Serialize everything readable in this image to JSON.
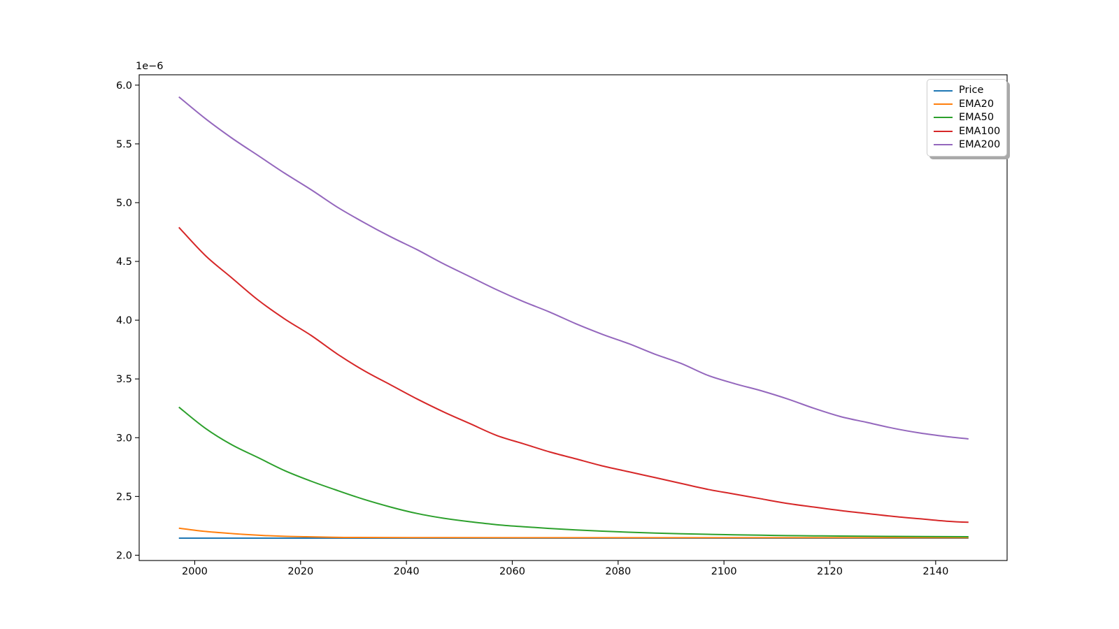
{
  "figure": {
    "background": "#ffffff",
    "offset_text": "1e−6"
  },
  "chart_data": {
    "type": "line",
    "title": "",
    "xlabel": "",
    "ylabel": "",
    "y_offset_label": "1e−6",
    "y_unit_multiplier": 1e-06,
    "xlim": [
      1989.5,
      2153.5
    ],
    "ylim": [
      1.955,
      6.088
    ],
    "grid": false,
    "x_ticks": {
      "values": [
        2000,
        2020,
        2040,
        2060,
        2080,
        2100,
        2120,
        2140
      ],
      "labels": [
        "2000",
        "2020",
        "2040",
        "2060",
        "2080",
        "2100",
        "2120",
        "2140"
      ]
    },
    "y_ticks": {
      "values": [
        2.0,
        2.5,
        3.0,
        3.5,
        4.0,
        4.5,
        5.0,
        5.5,
        6.0
      ],
      "labels": [
        "2.0",
        "2.5",
        "3.0",
        "3.5",
        "4.0",
        "4.5",
        "5.0",
        "5.5",
        "6.0"
      ]
    },
    "legend": {
      "position": "upper right",
      "shadow": true,
      "entries": [
        "Price",
        "EMA20",
        "EMA50",
        "EMA100",
        "EMA200"
      ]
    },
    "series": [
      {
        "name": "Price",
        "color": "#1f77b4",
        "points": [
          [
            1997.0,
            2.145
          ],
          [
            2146.2,
            2.145
          ]
        ]
      },
      {
        "name": "EMA20",
        "color": "#ff7f0e",
        "points": [
          [
            1997,
            2.23
          ],
          [
            2001,
            2.207
          ],
          [
            2005,
            2.191
          ],
          [
            2009,
            2.178
          ],
          [
            2013,
            2.168
          ],
          [
            2017,
            2.161
          ],
          [
            2021,
            2.157
          ],
          [
            2026,
            2.153
          ],
          [
            2031,
            2.151
          ],
          [
            2041,
            2.15
          ],
          [
            2061,
            2.149
          ],
          [
            2101,
            2.149
          ],
          [
            2146.2,
            2.149
          ]
        ]
      },
      {
        "name": "EMA50",
        "color": "#2ca02c",
        "points": [
          [
            1997,
            3.26
          ],
          [
            2002,
            3.08
          ],
          [
            2007,
            2.94
          ],
          [
            2012,
            2.83
          ],
          [
            2017,
            2.72
          ],
          [
            2022,
            2.63
          ],
          [
            2027,
            2.55
          ],
          [
            2032,
            2.475
          ],
          [
            2037,
            2.41
          ],
          [
            2042,
            2.355
          ],
          [
            2047,
            2.315
          ],
          [
            2052,
            2.285
          ],
          [
            2057,
            2.26
          ],
          [
            2062,
            2.243
          ],
          [
            2067,
            2.228
          ],
          [
            2072,
            2.215
          ],
          [
            2077,
            2.205
          ],
          [
            2082,
            2.196
          ],
          [
            2087,
            2.189
          ],
          [
            2092,
            2.183
          ],
          [
            2097,
            2.178
          ],
          [
            2102,
            2.174
          ],
          [
            2107,
            2.17
          ],
          [
            2112,
            2.167
          ],
          [
            2117,
            2.165
          ],
          [
            2122,
            2.163
          ],
          [
            2132,
            2.16
          ],
          [
            2146.2,
            2.157
          ]
        ]
      },
      {
        "name": "EMA100",
        "color": "#d62728",
        "points": [
          [
            1997,
            4.79
          ],
          [
            2002,
            4.55
          ],
          [
            2007,
            4.36
          ],
          [
            2012,
            4.17
          ],
          [
            2017,
            4.01
          ],
          [
            2022,
            3.87
          ],
          [
            2027,
            3.71
          ],
          [
            2032,
            3.57
          ],
          [
            2037,
            3.45
          ],
          [
            2042,
            3.33
          ],
          [
            2047,
            3.22
          ],
          [
            2052,
            3.12
          ],
          [
            2057,
            3.02
          ],
          [
            2062,
            2.95
          ],
          [
            2067,
            2.88
          ],
          [
            2072,
            2.82
          ],
          [
            2077,
            2.76
          ],
          [
            2082,
            2.71
          ],
          [
            2087,
            2.66
          ],
          [
            2092,
            2.61
          ],
          [
            2097,
            2.56
          ],
          [
            2102,
            2.52
          ],
          [
            2107,
            2.48
          ],
          [
            2112,
            2.44
          ],
          [
            2117,
            2.41
          ],
          [
            2122,
            2.38
          ],
          [
            2127,
            2.355
          ],
          [
            2132,
            2.33
          ],
          [
            2137,
            2.31
          ],
          [
            2142,
            2.29
          ],
          [
            2146.2,
            2.28
          ]
        ]
      },
      {
        "name": "EMA200",
        "color": "#9467bd",
        "points": [
          [
            1997,
            5.9
          ],
          [
            2002,
            5.715
          ],
          [
            2007,
            5.55
          ],
          [
            2012,
            5.4
          ],
          [
            2017,
            5.25
          ],
          [
            2022,
            5.11
          ],
          [
            2027,
            4.96
          ],
          [
            2032,
            4.83
          ],
          [
            2037,
            4.71
          ],
          [
            2042,
            4.6
          ],
          [
            2047,
            4.48
          ],
          [
            2052,
            4.37
          ],
          [
            2057,
            4.26
          ],
          [
            2062,
            4.16
          ],
          [
            2067,
            4.07
          ],
          [
            2072,
            3.97
          ],
          [
            2077,
            3.88
          ],
          [
            2082,
            3.8
          ],
          [
            2087,
            3.71
          ],
          [
            2092,
            3.63
          ],
          [
            2097,
            3.53
          ],
          [
            2102,
            3.46
          ],
          [
            2107,
            3.4
          ],
          [
            2112,
            3.33
          ],
          [
            2117,
            3.25
          ],
          [
            2122,
            3.18
          ],
          [
            2127,
            3.13
          ],
          [
            2132,
            3.08
          ],
          [
            2137,
            3.04
          ],
          [
            2142,
            3.01
          ],
          [
            2146.2,
            2.99
          ]
        ]
      }
    ]
  }
}
